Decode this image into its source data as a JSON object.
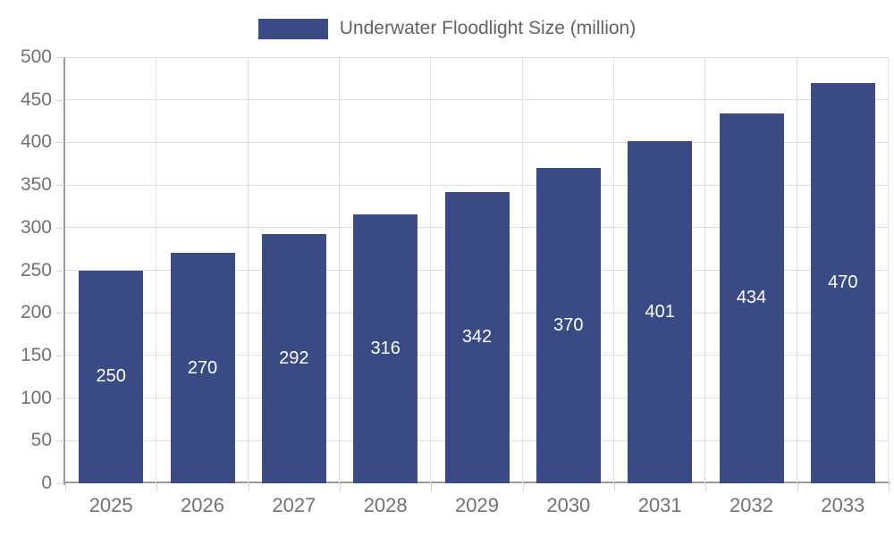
{
  "legend": {
    "label": "Underwater Floodlight Size (million)"
  },
  "colors": {
    "bar": "#3A4A84",
    "grid": "#E0E0E0",
    "axis": "#9A9A9A",
    "tick": "#D5D5D5",
    "axis_label": "#707276",
    "legend_text": "#606368",
    "value_label": "#FFFFFF",
    "background": "#FFFFFF"
  },
  "chart_data": {
    "type": "bar",
    "title": "Underwater Floodlight Size (million)",
    "categories": [
      "2025",
      "2026",
      "2027",
      "2028",
      "2029",
      "2030",
      "2031",
      "2032",
      "2033"
    ],
    "series": [
      {
        "name": "Underwater Floodlight Size (million)",
        "values": [
          250,
          270,
          292,
          316,
          342,
          370,
          401,
          434,
          470
        ]
      }
    ],
    "xlabel": "",
    "ylabel": "",
    "ylim": [
      0,
      500
    ],
    "ytick_step": 50,
    "grid": true,
    "legend_position": "top",
    "value_label_position": "inside-center"
  }
}
